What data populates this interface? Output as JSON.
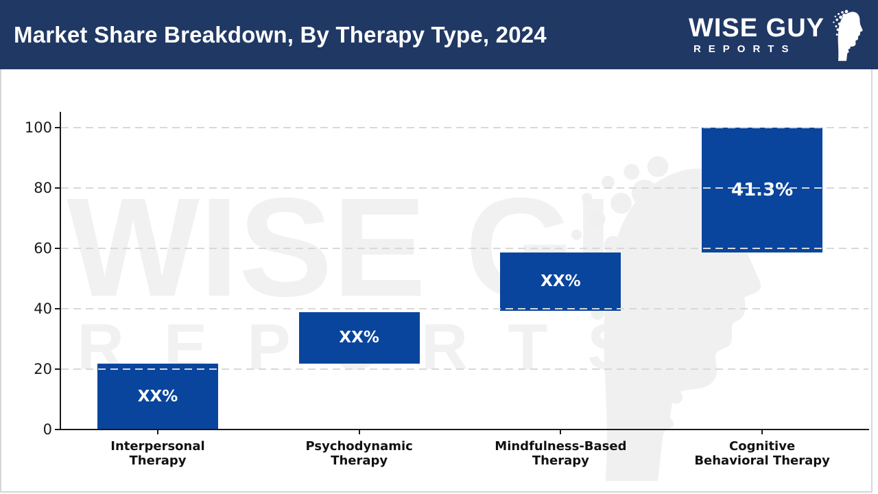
{
  "header": {
    "title": "Market Share Breakdown, By Therapy Type, 2024",
    "bg_color": "#203864",
    "logo": {
      "name": "WISE GUY",
      "tagline": "REPORTS",
      "icon": "dotted-face-profile"
    }
  },
  "watermark": {
    "line1": "WISE GUY",
    "line2": "REPORTS",
    "icon": "dotted-face-profile",
    "color": "#f1f1f1"
  },
  "chart_data": {
    "type": "bar",
    "subtype": "floating-waterfall-columns",
    "title": "Market Share Breakdown, By Therapy Type, 2024",
    "categories": [
      [
        "Interpersonal",
        "Therapy"
      ],
      [
        "Psychodynamic",
        "Therapy"
      ],
      [
        "Mindfulness-Based",
        "Therapy"
      ],
      [
        "Cognitive",
        "Behavioral Therapy"
      ]
    ],
    "bars": [
      {
        "start": 0,
        "end": 21.8,
        "label": "XX%"
      },
      {
        "start": 21.8,
        "end": 38.9,
        "label": "XX%"
      },
      {
        "start": 39.3,
        "end": 58.7,
        "label": "XX%"
      },
      {
        "start": 58.7,
        "end": 100,
        "label": "41.3%"
      }
    ],
    "xlabel": "",
    "ylabel": "",
    "ylim": [
      0,
      105.5
    ],
    "yticks": [
      0,
      20,
      40,
      60,
      80,
      100
    ],
    "grid": "horizontal-dashed",
    "grid_color": "#d8d8d8",
    "legend": "none",
    "bar_color": "#09459d",
    "label_color": "#ffffff"
  }
}
